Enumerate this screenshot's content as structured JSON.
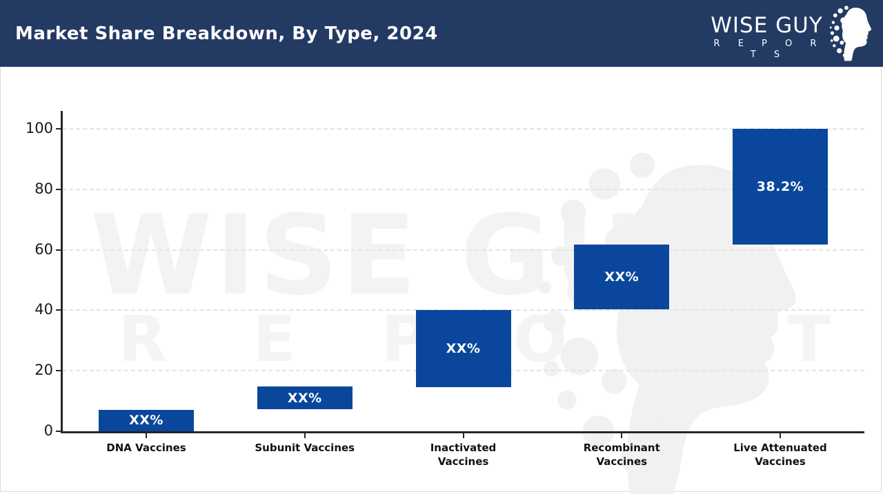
{
  "header": {
    "title": "Market Share Breakdown, By Type, 2024",
    "bg_color": "#233A63",
    "logo": {
      "line1": "WISE GUY",
      "line2": "R E P O R T S",
      "icon": "head-profile-dots-icon"
    }
  },
  "watermark": {
    "line1": "WISE GUY",
    "line2": "REPORTS",
    "icon": "head-profile-dots-icon"
  },
  "chart_data": {
    "type": "bar",
    "subtype": "waterfall",
    "title": "Market Share Breakdown, By Type, 2024",
    "xlabel": "",
    "ylabel": "",
    "categories": [
      "DNA Vaccines",
      "Subunit Vaccines",
      "Inactivated\nVaccines",
      "Recombinant\nVaccines",
      "Live Attenuated\nVaccines"
    ],
    "segments": [
      {
        "category": "DNA Vaccines",
        "start": 0.0,
        "end": 7.1,
        "value_label": "XX%"
      },
      {
        "category": "Subunit Vaccines",
        "start": 7.3,
        "end": 14.7,
        "value_label": "XX%"
      },
      {
        "category": "Inactivated Vaccines",
        "start": 14.6,
        "end": 40.1,
        "value_label": "XX%"
      },
      {
        "category": "Recombinant Vaccines",
        "start": 40.4,
        "end": 61.8,
        "value_label": "XX%"
      },
      {
        "category": "Live Attenuated Vaccines",
        "start": 61.8,
        "end": 100.0,
        "value_label": "38.2%"
      }
    ],
    "y_ticks": [
      0,
      20,
      40,
      60,
      80,
      100
    ],
    "ylim": [
      0,
      106
    ],
    "bar_color": "#0A479C",
    "grid": "horizontal-dashed",
    "legend": "none"
  }
}
